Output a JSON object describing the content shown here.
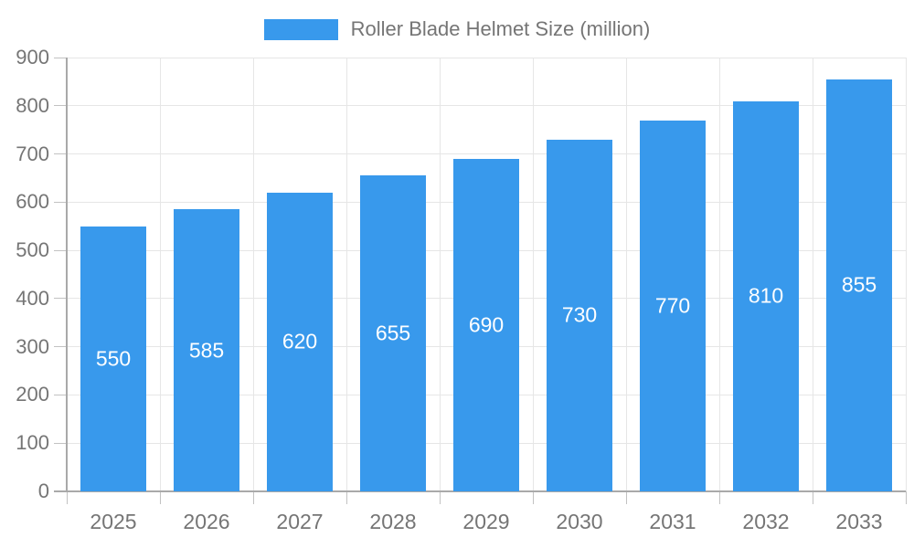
{
  "legend": {
    "label": "Roller Blade Helmet Size (million)"
  },
  "chart_data": {
    "type": "bar",
    "title": "Roller Blade Helmet Size (million)",
    "categories": [
      "2025",
      "2026",
      "2027",
      "2028",
      "2029",
      "2030",
      "2031",
      "2032",
      "2033"
    ],
    "values": [
      550,
      585,
      620,
      655,
      690,
      730,
      770,
      810,
      855
    ],
    "xlabel": "",
    "ylabel": "",
    "ylim": [
      0,
      900
    ],
    "yticks": [
      0,
      100,
      200,
      300,
      400,
      500,
      600,
      700,
      800,
      900
    ],
    "grid": true,
    "legend_position": "top-center",
    "bar_color": "#3899ec",
    "value_label_color": "#ffffff",
    "axis_text_color": "#757575",
    "grid_color": "#e6e6e6",
    "axis_line_color": "#a9a9a9",
    "tick_color": "#c2c2c2",
    "background_color": "#ffffff"
  }
}
